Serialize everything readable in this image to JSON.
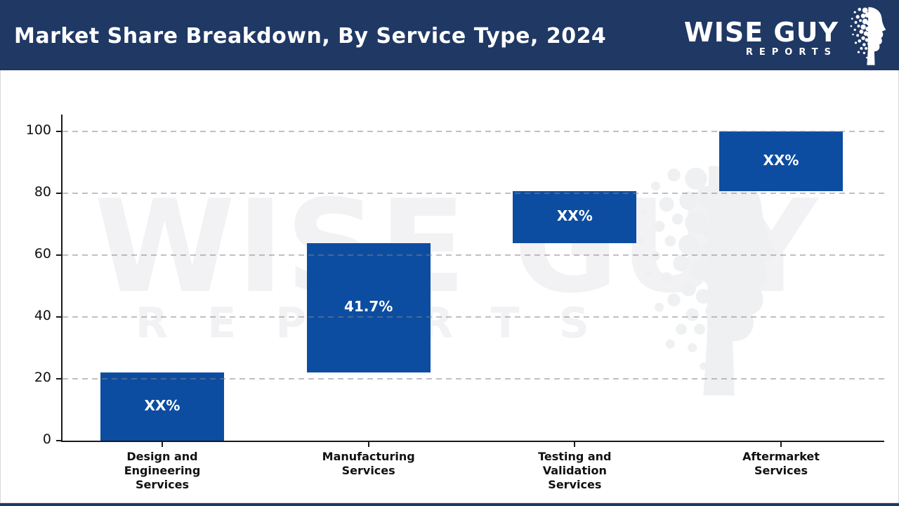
{
  "header": {
    "title": "Market Share Breakdown, By Service Type, 2024",
    "brand": {
      "name": "WISE GUY",
      "sub": "REPORTS"
    }
  },
  "watermark": {
    "big": "WISE GUY",
    "sub": "REPORTS"
  },
  "chart_data": {
    "type": "bar",
    "subtype": "waterfall",
    "title": "Market Share Breakdown, By Service Type, 2024",
    "xlabel": "",
    "ylabel": "",
    "ylim": [
      0,
      100
    ],
    "yticks": [
      0,
      20,
      40,
      60,
      80,
      100
    ],
    "grid": "horizontal-dashed",
    "legend": "none",
    "bar_color": "#0d4da1",
    "categories": [
      "Design and\nEngineering\nServices",
      "Manufacturing\nServices",
      "Testing and\nValidation\nServices",
      "Aftermarket\nServices"
    ],
    "values": [
      22.0,
      41.7,
      16.8,
      19.5
    ],
    "segments": [
      {
        "label": "XX%",
        "start": 0.0,
        "end": 22.0
      },
      {
        "label": "41.7%",
        "start": 22.0,
        "end": 63.7
      },
      {
        "label": "XX%",
        "start": 63.7,
        "end": 80.5
      },
      {
        "label": "XX%",
        "start": 80.5,
        "end": 100.0
      }
    ]
  }
}
